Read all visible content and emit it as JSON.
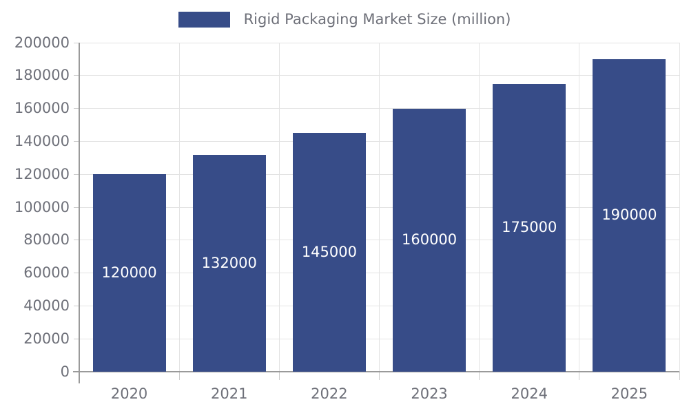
{
  "legend": {
    "label": "Rigid Packaging Market Size (million)"
  },
  "colors": {
    "bar": "#374C88",
    "bar_label_text": "#FFFFFF",
    "axis_line": "#9A9A9A",
    "grid_line": "#E3E3E3",
    "tick_mark": "#CCCCCC",
    "tick_label_text": "#6E7079",
    "background": "#FFFFFF"
  },
  "chart_data": {
    "type": "bar",
    "title": "Rigid Packaging Market Size (million)",
    "categories": [
      "2020",
      "2021",
      "2022",
      "2023",
      "2024",
      "2025"
    ],
    "series": [
      {
        "name": "Rigid Packaging Market Size (million)",
        "values": [
          120000,
          132000,
          145000,
          160000,
          175000,
          190000
        ]
      }
    ],
    "data_labels": [
      "120000",
      "132000",
      "145000",
      "160000",
      "175000",
      "190000"
    ],
    "data_label_position": "inside-center",
    "xlabel": "",
    "ylabel": "",
    "ylim": [
      0,
      200000
    ],
    "y_tick_step": 20000,
    "y_tick_labels": [
      "0",
      "20000",
      "40000",
      "60000",
      "80000",
      "100000",
      "120000",
      "140000",
      "160000",
      "180000",
      "200000"
    ],
    "grid": true,
    "legend_position": "top-center"
  }
}
